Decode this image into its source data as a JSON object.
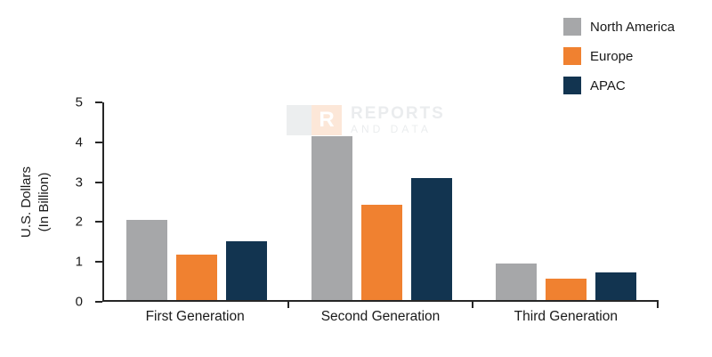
{
  "chart_data": {
    "type": "bar",
    "categories": [
      "First Generation",
      "Second Generation",
      "Third Generation"
    ],
    "series": [
      {
        "name": "North America",
        "color": "#a6a7a9",
        "values": [
          2.02,
          4.15,
          0.92
        ]
      },
      {
        "name": "Europe",
        "color": "#f08130",
        "values": [
          1.15,
          2.41,
          0.55
        ]
      },
      {
        "name": "APAC",
        "color": "#123450",
        "values": [
          1.49,
          3.08,
          0.69
        ]
      }
    ],
    "title": "",
    "xlabel": "",
    "ylabel": "U.S. Dollars (In Billion)",
    "ylabel_line1": "U.S. Dollars",
    "ylabel_line2": "(In Billion)",
    "ylim": [
      0,
      5
    ],
    "yticks": [
      0,
      1,
      2,
      3,
      4,
      5
    ],
    "grid": false,
    "legend_position": "top-right"
  },
  "legend": [
    {
      "label": "North America",
      "color": "#a6a7a9"
    },
    {
      "label": "Europe",
      "color": "#f08130"
    },
    {
      "label": "APAC",
      "color": "#123450"
    }
  ],
  "watermark": {
    "logo_letter": "R",
    "text_top": "REPORTS",
    "text_bottom": "AND DATA"
  }
}
